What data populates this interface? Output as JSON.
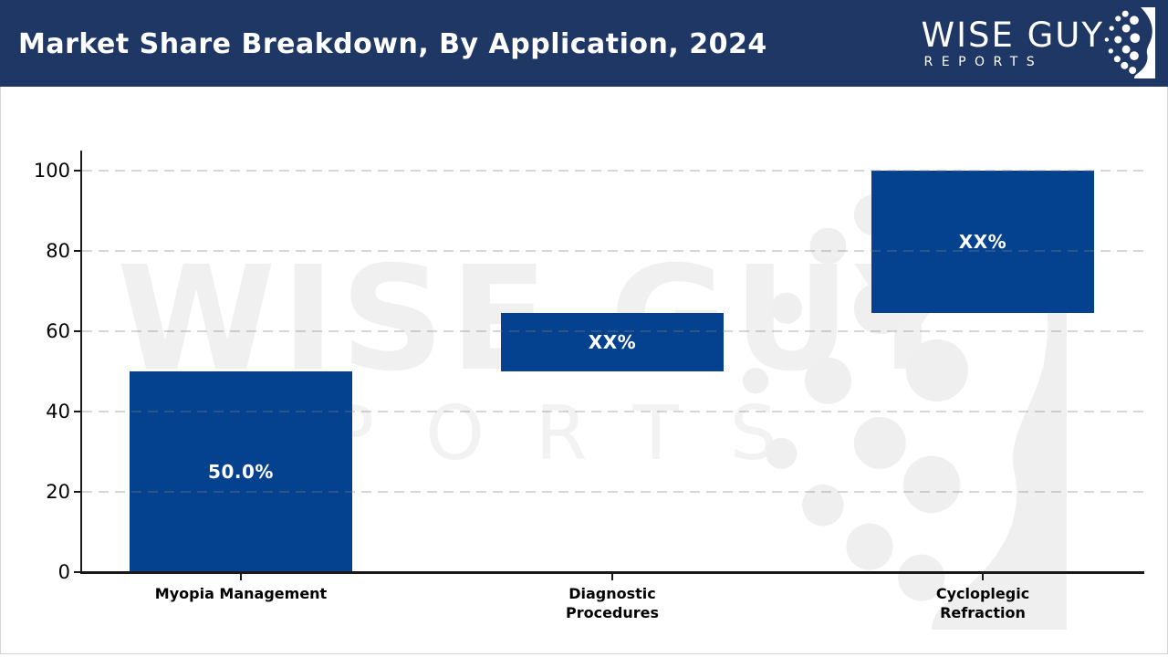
{
  "header": {
    "title": "Market Share Breakdown, By Application, 2024",
    "logo": {
      "primary": "WISE GUY",
      "secondary": "REPORTS"
    }
  },
  "watermark": {
    "primary": "WISE GUY",
    "secondary": "REPORTS"
  },
  "chart_data": {
    "type": "bar",
    "subtype": "floating-segment-waterfall",
    "title": "Market Share Breakdown, By Application, 2024",
    "categories": [
      "Myopia Management",
      "Diagnostic Procedures",
      "Cycloplegic Refraction"
    ],
    "category_lines": [
      [
        "Myopia Management"
      ],
      [
        "Diagnostic",
        "Procedures"
      ],
      [
        "Cycloplegic",
        "Refraction"
      ]
    ],
    "segments": [
      {
        "start": 0,
        "end": 50
      },
      {
        "start": 50,
        "end": 64.5
      },
      {
        "start": 64.5,
        "end": 100
      }
    ],
    "bar_labels": [
      "50.0%",
      "XX%",
      "XX%"
    ],
    "ylim": [
      0,
      100
    ],
    "yticks": [
      0,
      20,
      40,
      60,
      80,
      100
    ],
    "grid": "dashed-horizontal",
    "legend": "none",
    "bar_color": "#04418f",
    "bar_label_color": "#ffffff",
    "axis_color": "#1a1a1a",
    "header_color": "#1f3765",
    "watermark_color": "#f0f0f0"
  }
}
